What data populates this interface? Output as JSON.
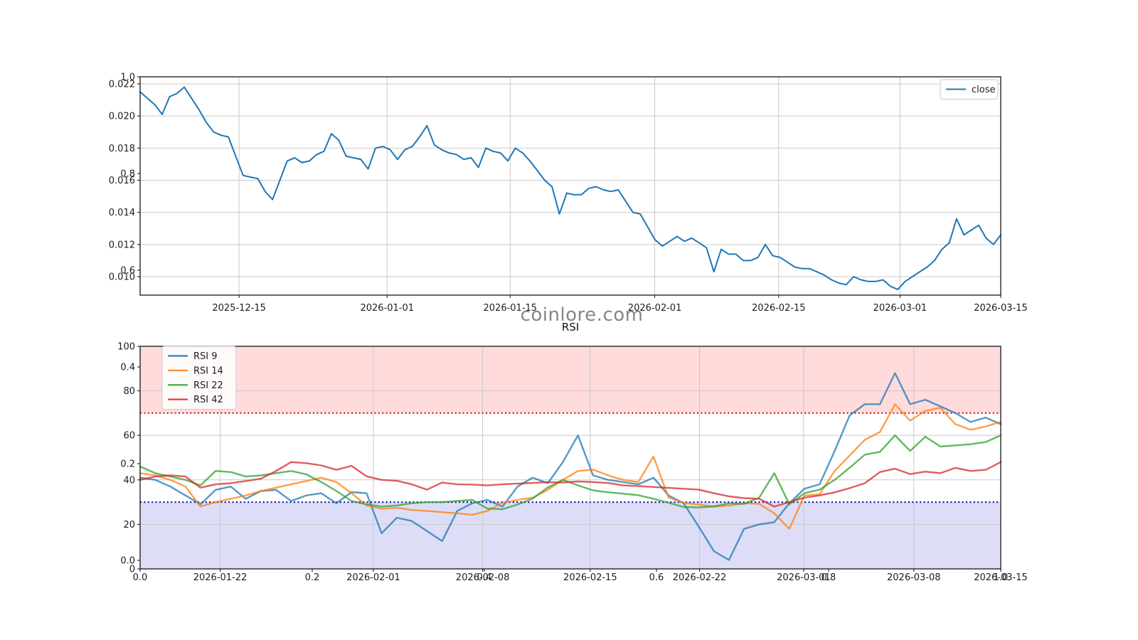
{
  "watermark": "coinlore.com",
  "hidden_axis": {
    "x_tick_labels": [
      "0.0",
      "0.2",
      "0.4",
      "0.6",
      "0.8",
      "1.0"
    ],
    "y_tick_labels": [
      "1.0",
      "0.8",
      "0.6",
      "0.4",
      "0.2",
      "0.0"
    ]
  },
  "chart_data": [
    {
      "type": "line",
      "title": "",
      "xlabel": "",
      "ylabel": "",
      "grid": true,
      "legend_position": "upper right",
      "ylim": [
        0.00885,
        0.02244
      ],
      "yticks": [
        {
          "v": 0.022,
          "label": "0.022"
        },
        {
          "v": 0.02,
          "label": "0.020"
        },
        {
          "v": 0.018,
          "label": "0.018"
        },
        {
          "v": 0.016,
          "label": "0.016"
        },
        {
          "v": 0.014,
          "label": "0.014"
        },
        {
          "v": 0.012,
          "label": "0.012"
        },
        {
          "v": 0.01,
          "label": "0.010"
        }
      ],
      "xticks": [
        {
          "pos": 0.115,
          "label": "2025-12-15"
        },
        {
          "pos": 0.287,
          "label": "2026-01-01"
        },
        {
          "pos": 0.43,
          "label": "2026-01-15"
        },
        {
          "pos": 0.598,
          "label": "2026-02-01"
        },
        {
          "pos": 0.742,
          "label": "2026-02-15"
        },
        {
          "pos": 0.883,
          "label": "2026-03-01"
        },
        {
          "pos": 1.0,
          "label": "2026-03-15"
        }
      ],
      "series": [
        {
          "name": "close",
          "color": "#1f77b4",
          "opacity": 1,
          "width": 2,
          "values": [
            0.0215,
            0.0211,
            0.0207,
            0.0201,
            0.0212,
            0.0214,
            0.0218,
            0.0211,
            0.0204,
            0.0196,
            0.019,
            0.0188,
            0.0187,
            0.0175,
            0.0163,
            0.0162,
            0.0161,
            0.0153,
            0.0148,
            0.016,
            0.0172,
            0.0174,
            0.0171,
            0.0172,
            0.0176,
            0.0178,
            0.0189,
            0.0185,
            0.0175,
            0.0174,
            0.0173,
            0.0167,
            0.018,
            0.0181,
            0.0179,
            0.0173,
            0.0179,
            0.0181,
            0.0187,
            0.0194,
            0.0182,
            0.0179,
            0.0177,
            0.0176,
            0.0173,
            0.0174,
            0.0168,
            0.018,
            0.0178,
            0.0177,
            0.0172,
            0.018,
            0.0177,
            0.0172,
            0.0166,
            0.016,
            0.0156,
            0.0139,
            0.0152,
            0.0151,
            0.0151,
            0.0155,
            0.0156,
            0.0154,
            0.0153,
            0.0154,
            0.0147,
            0.014,
            0.0139,
            0.0131,
            0.0123,
            0.0119,
            0.0122,
            0.0125,
            0.0122,
            0.0124,
            0.0121,
            0.0118,
            0.0103,
            0.0117,
            0.0114,
            0.0114,
            0.011,
            0.011,
            0.0112,
            0.012,
            0.0113,
            0.0112,
            0.0109,
            0.0106,
            0.0105,
            0.0105,
            0.0103,
            0.0101,
            0.0098,
            0.0096,
            0.0095,
            0.01,
            0.0098,
            0.0097,
            0.0097,
            0.0098,
            0.0094,
            0.0092,
            0.0097,
            0.01,
            0.0103,
            0.0106,
            0.011,
            0.0117,
            0.0121,
            0.0136,
            0.0126,
            0.0129,
            0.0132,
            0.0124,
            0.012,
            0.0126
          ]
        }
      ]
    },
    {
      "type": "line",
      "title": "RSI",
      "xlabel": "",
      "ylabel": "",
      "grid": true,
      "legend_position": "upper left",
      "ylim": [
        0,
        100
      ],
      "yticks": [
        {
          "v": 100,
          "label": "100"
        },
        {
          "v": 80,
          "label": "80"
        },
        {
          "v": 60,
          "label": "60"
        },
        {
          "v": 40,
          "label": "40"
        },
        {
          "v": 20,
          "label": "20"
        },
        {
          "v": 0,
          "label": "0"
        }
      ],
      "xticks": [
        {
          "pos": 0.093,
          "label": "2026-01-22"
        },
        {
          "pos": 0.271,
          "label": "2026-02-01"
        },
        {
          "pos": 0.398,
          "label": "2026-02-08"
        },
        {
          "pos": 0.523,
          "label": "2026-02-15"
        },
        {
          "pos": 0.65,
          "label": "2026-02-22"
        },
        {
          "pos": 0.771,
          "label": "2026-03-01"
        },
        {
          "pos": 0.899,
          "label": "2026-03-08"
        },
        {
          "pos": 1.0,
          "label": "2026-03-15"
        }
      ],
      "bands": [
        {
          "name": "overbought-zone",
          "from": 70,
          "to": 100,
          "color": "rgba(255,0,0,0.14)"
        },
        {
          "name": "oversold-zone",
          "from": 0,
          "to": 30,
          "color": "rgba(30,30,200,0.15)"
        }
      ],
      "hlines": [
        {
          "y": 70,
          "color": "#cc2222",
          "name": "overbought-threshold-line"
        },
        {
          "y": 30,
          "color": "#1111aa",
          "name": "oversold-threshold-line"
        }
      ],
      "series": [
        {
          "name": "RSI 9",
          "color": "#1f77b4",
          "opacity": 0.75,
          "width": 2.4,
          "values": [
            41,
            40,
            37,
            33,
            29,
            35.5,
            37,
            31.5,
            35,
            35.5,
            30.5,
            33,
            34,
            29.5,
            34.5,
            34,
            16,
            23,
            21.5,
            17,
            12.5,
            26,
            29.5,
            31,
            28,
            37,
            41,
            38.5,
            48,
            60,
            42,
            40,
            39,
            38,
            41,
            33,
            29.5,
            19,
            8,
            4,
            18,
            20,
            21,
            29.5,
            36,
            38,
            53,
            69,
            74,
            74,
            88,
            74,
            76,
            73,
            70,
            66,
            68,
            65
          ]
        },
        {
          "name": "RSI 14",
          "color": "#ff7f0e",
          "opacity": 0.75,
          "width": 2.4,
          "values": [
            43,
            42,
            40,
            37,
            28,
            30,
            31.5,
            33,
            35,
            36.5,
            38,
            39.5,
            41,
            39,
            34,
            28.5,
            27,
            27.5,
            26.5,
            26,
            25.5,
            25,
            24.3,
            26,
            29.7,
            31,
            32,
            35.5,
            40,
            44,
            44.6,
            42,
            40,
            39,
            50.5,
            32,
            29.7,
            28.9,
            28,
            28.4,
            29.5,
            29.2,
            25,
            18,
            33,
            33.5,
            44,
            51,
            58,
            61.5,
            74,
            66.6,
            71,
            72.4,
            65,
            62.5,
            64,
            66
          ]
        },
        {
          "name": "RSI 22",
          "color": "#2ca02c",
          "opacity": 0.75,
          "width": 2.4,
          "values": [
            46,
            43,
            41.5,
            40,
            37.5,
            44,
            43.5,
            41.5,
            42,
            43,
            44,
            42.5,
            39,
            35,
            30.5,
            29,
            28,
            28.5,
            29.5,
            30,
            30,
            30.5,
            31,
            27.1,
            26.8,
            28.9,
            31.6,
            36.6,
            40,
            37.5,
            35.3,
            34.4,
            33.8,
            33.1,
            31.5,
            29.7,
            27.8,
            27.6,
            28.1,
            29.4,
            29.2,
            32,
            43,
            29,
            34,
            35.6,
            40,
            45.5,
            51.3,
            52.6,
            60,
            53,
            59.4,
            55,
            55.5,
            56,
            57,
            60
          ]
        },
        {
          "name": "RSI 42",
          "color": "#d62728",
          "opacity": 0.75,
          "width": 2.4,
          "values": [
            40,
            41.5,
            42,
            41.5,
            36.5,
            38,
            38.5,
            39.5,
            40.5,
            44,
            48,
            47.5,
            46.5,
            44.5,
            46.3,
            41.6,
            40,
            39.6,
            38,
            35.6,
            38.8,
            38,
            37.9,
            37.5,
            38,
            38.3,
            38.6,
            39,
            38.8,
            39.3,
            39,
            38.6,
            37.5,
            37.2,
            36.8,
            36.4,
            36,
            35.6,
            34,
            32.6,
            31.8,
            31.5,
            28,
            30,
            32,
            33,
            34.4,
            36.3,
            38.5,
            43.5,
            45,
            42.6,
            43.7,
            43,
            45.4,
            44,
            44.5,
            48
          ]
        }
      ]
    }
  ]
}
